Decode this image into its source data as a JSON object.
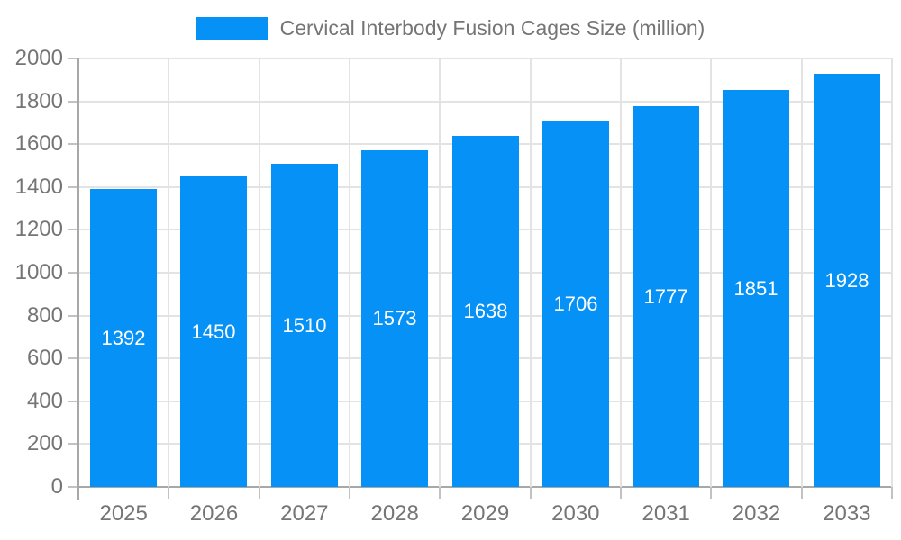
{
  "chart_data": {
    "type": "bar",
    "title": "Cervical Interbody Fusion Cages Size (million)",
    "series_name": "Cervical Interbody Fusion Cages Size (million)",
    "categories": [
      "2025",
      "2026",
      "2027",
      "2028",
      "2029",
      "2030",
      "2031",
      "2032",
      "2033"
    ],
    "values": [
      1392,
      1450,
      1510,
      1573,
      1638,
      1706,
      1777,
      1851,
      1928
    ],
    "xlabel": "",
    "ylabel": "",
    "ylim": [
      0,
      2000
    ],
    "yticks": [
      0,
      200,
      400,
      600,
      800,
      1000,
      1200,
      1400,
      1600,
      1800,
      2000
    ],
    "grid": true,
    "legend_position": "top",
    "colors": {
      "bar": "#0591F5",
      "value_label": "#ffffff",
      "axis_text": "#757575",
      "gridline": "#e3e3e3",
      "axis_line": "#a8a8a8",
      "background": "#ffffff"
    }
  }
}
